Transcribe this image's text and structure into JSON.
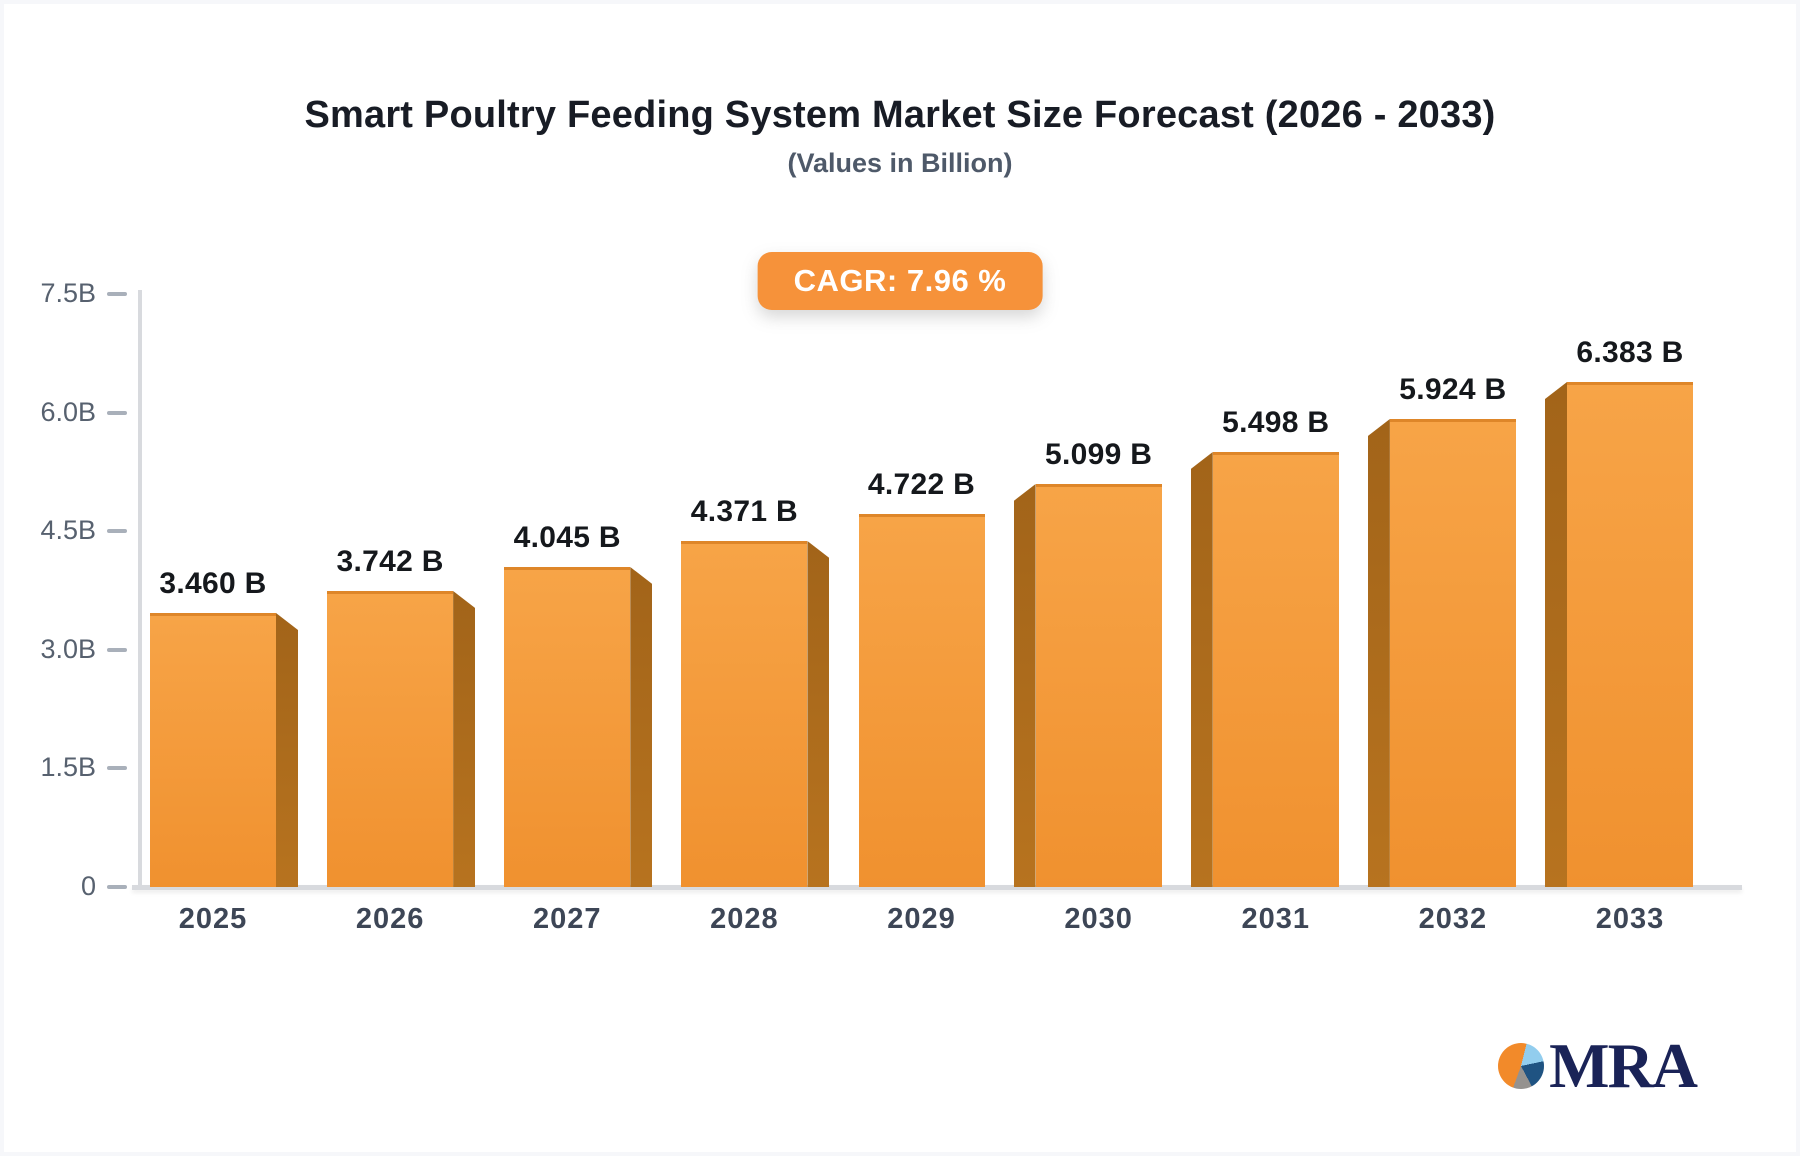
{
  "header": {
    "title": "Smart Poultry Feeding System Market Size Forecast (2026 - 2033)",
    "subtitle": "(Values in Billion)",
    "badge": "CAGR: 7.96 %"
  },
  "chart_data": {
    "type": "bar",
    "title": "Smart Poultry Feeding System Market Size Forecast (2026 - 2033)",
    "subtitle": "(Values in Billion)",
    "annotation": "CAGR: 7.96 %",
    "categories": [
      "2025",
      "2026",
      "2027",
      "2028",
      "2029",
      "2030",
      "2031",
      "2032",
      "2033"
    ],
    "values": [
      3.46,
      3.742,
      4.045,
      4.371,
      4.722,
      5.099,
      5.498,
      5.924,
      6.383
    ],
    "value_labels": [
      "3.460 B",
      "3.742 B",
      "4.045 B",
      "4.371 B",
      "4.722 B",
      "5.099 B",
      "5.498 B",
      "5.924 B",
      "6.383 B"
    ],
    "xlabel": "",
    "ylabel": "",
    "ylim": [
      0,
      7.5
    ],
    "yticks": [
      {
        "value": 7.5,
        "label": "7.5B"
      },
      {
        "value": 6.0,
        "label": "6.0B"
      },
      {
        "value": 4.5,
        "label": "4.5B"
      },
      {
        "value": 3.0,
        "label": "3.0B"
      },
      {
        "value": 1.5,
        "label": "1.5B"
      },
      {
        "value": 0,
        "label": "0"
      }
    ],
    "grid": false,
    "legend": "none",
    "bar_3d": true,
    "colors": {
      "bar_face_top": "#f7a447",
      "bar_face_bottom": "#f0912f",
      "bar_face_edge": "#de8629",
      "bar_side_dark": "#a26419",
      "bar_side_light": "#b7731f",
      "badge_bg": "#f6923a",
      "axis_line": "#d8dade",
      "tick_mark": "#a9b0ba",
      "y_label": "#57616f",
      "x_label": "#3d4656",
      "value_label": "#15181c",
      "title": "#181c25",
      "subtitle": "#4e5969"
    }
  },
  "branding": {
    "name": "MRA",
    "navy": "#1a2357",
    "pie_colors": {
      "orange": "#f28a2a",
      "light_blue": "#92cdee",
      "dark_blue": "#1f5382",
      "gray": "#95928f"
    }
  }
}
